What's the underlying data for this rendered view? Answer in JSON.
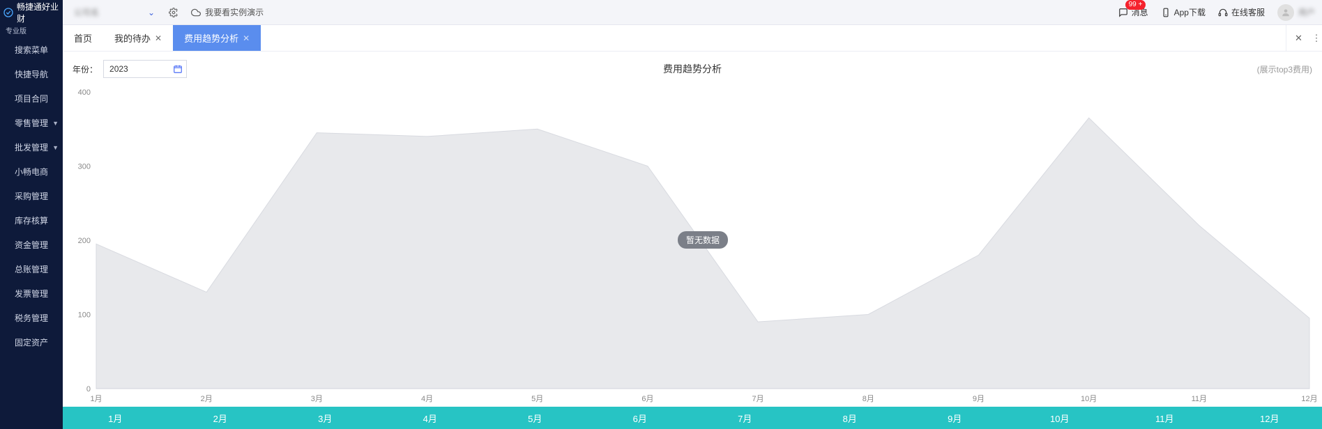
{
  "brand": {
    "name": "畅捷通好业财",
    "edition": "专业版"
  },
  "sidebar": {
    "items": [
      {
        "label": "搜索菜单",
        "hasCaret": false
      },
      {
        "label": "快捷导航",
        "hasCaret": false
      },
      {
        "label": "项目合同",
        "hasCaret": false
      },
      {
        "label": "零售管理",
        "hasCaret": true
      },
      {
        "label": "批发管理",
        "hasCaret": true
      },
      {
        "label": "小畅电商",
        "hasCaret": false
      },
      {
        "label": "采购管理",
        "hasCaret": false
      },
      {
        "label": "库存核算",
        "hasCaret": false
      },
      {
        "label": "资金管理",
        "hasCaret": false
      },
      {
        "label": "总账管理",
        "hasCaret": false
      },
      {
        "label": "发票管理",
        "hasCaret": false
      },
      {
        "label": "税务管理",
        "hasCaret": false
      },
      {
        "label": "固定资产",
        "hasCaret": false
      }
    ]
  },
  "topbar": {
    "orgPlaceholder": "公司名",
    "demoLabel": "我要看实例演示",
    "right": {
      "messageLabel": "消息",
      "messageBadge": "99 +",
      "appLabel": "App下载",
      "serviceLabel": "在线客服",
      "userName": "用户"
    }
  },
  "tabs": {
    "items": [
      {
        "label": "首页",
        "closable": false,
        "active": false
      },
      {
        "label": "我的待办",
        "closable": true,
        "active": false
      },
      {
        "label": "费用趋势分析",
        "closable": true,
        "active": true
      }
    ]
  },
  "filter": {
    "yearLabel": "年份：",
    "yearValue": "2023"
  },
  "chart": {
    "title": "费用趋势分析",
    "rightNote": "(展示top3费用)",
    "noDataLabel": "暂无数据",
    "type": "area",
    "background_color": "#ffffff",
    "area_fill": "#e8e9ec",
    "area_stroke": "#d8dae0",
    "axis_color": "#666666",
    "tick_color": "#888888",
    "tick_fontsize": 11,
    "xlabels": [
      "1月",
      "2月",
      "3月",
      "4月",
      "5月",
      "6月",
      "7月",
      "8月",
      "9月",
      "10月",
      "11月",
      "12月"
    ],
    "yticks": [
      0,
      100,
      200,
      300,
      400
    ],
    "ylim": [
      0,
      400
    ],
    "values": [
      195,
      130,
      345,
      340,
      350,
      300,
      90,
      100,
      180,
      365,
      220,
      95
    ],
    "noDataAnchorIndex": 5
  },
  "monthStrip": {
    "bg": "#27c4c4",
    "text_color": "#ffffff",
    "labels": [
      "1月",
      "2月",
      "3月",
      "4月",
      "5月",
      "6月",
      "7月",
      "8月",
      "9月",
      "10月",
      "11月",
      "12月"
    ]
  }
}
